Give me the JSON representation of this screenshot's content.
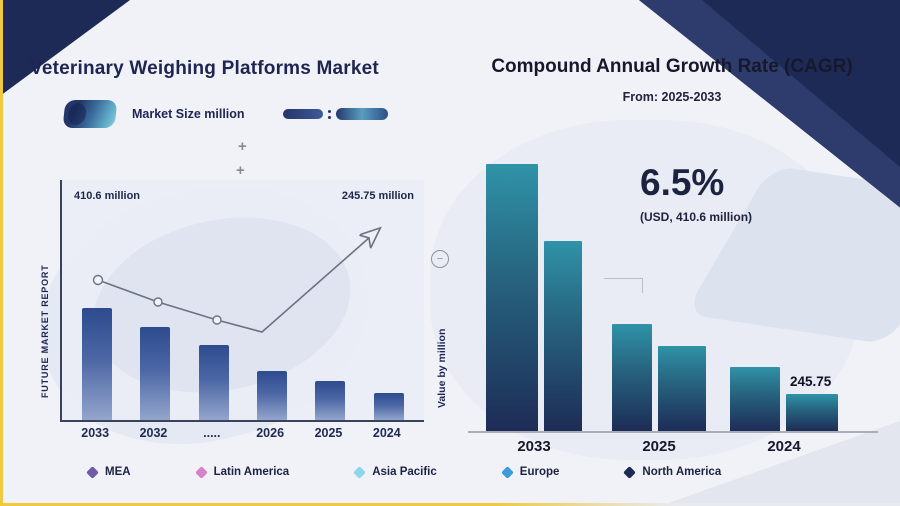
{
  "decor": {
    "plus": "+",
    "minus": "−"
  },
  "colors": {
    "navy": "#1d2a56",
    "teal": "#2f93a8",
    "yellow": "#f0c93f",
    "bar_gradient_left": [
      "#2d4b8e",
      "#93a5cc"
    ],
    "bar_gradient_right": [
      "#2f93a8",
      "#1d2c56"
    ]
  },
  "region_legend": [
    {
      "label": "MEA",
      "color": "#6f5aa8"
    },
    {
      "label": "Latin America",
      "color": "#d683c6"
    },
    {
      "label": "Asia Pacific",
      "color": "#8fd6ea"
    },
    {
      "label": "Europe",
      "color": "#3e9bdb"
    },
    {
      "label": "North America",
      "color": "#1d2a56"
    }
  ],
  "chart_data": [
    {
      "type": "bar",
      "title": "Veterinary Weighing Platforms Market",
      "legend": "Market Size million",
      "ylabel": "FUTURE MARKET REPORT",
      "categories": [
        "2033",
        "2032",
        ".....",
        "2026",
        "2025",
        "2024"
      ],
      "relative_heights_pct": [
        100,
        83,
        67,
        44,
        35,
        24
      ],
      "labeled_values_million": {
        "2033": 410.6,
        "2024": 245.75
      },
      "annotations": [
        {
          "text": "410.6 million",
          "position": "top-left"
        },
        {
          "text": "245.75 million",
          "position": "top-right"
        }
      ],
      "trend": {
        "type": "line-with-arrow",
        "description": "markers descending from 2033 toward 2026, then arrow rising to upper right"
      },
      "legend_position": "top",
      "grid": false
    },
    {
      "type": "bar",
      "title": "Compound Annual Growth Rate (CAGR)",
      "subtitle": "From: 2025-2033",
      "cagr": "6.5%",
      "cagr_note": "(USD, 410.6 million)",
      "ylabel": "Value by million",
      "categories": [
        "2033",
        "2025",
        "2024"
      ],
      "groups": [
        {
          "label": "2033",
          "bars_pct": [
            100,
            71
          ]
        },
        {
          "label": "2025",
          "bars_pct": [
            40,
            32
          ]
        },
        {
          "label": "2024",
          "bars_pct": [
            24,
            14
          ]
        }
      ],
      "value_label": "245.75",
      "grid": false
    }
  ]
}
